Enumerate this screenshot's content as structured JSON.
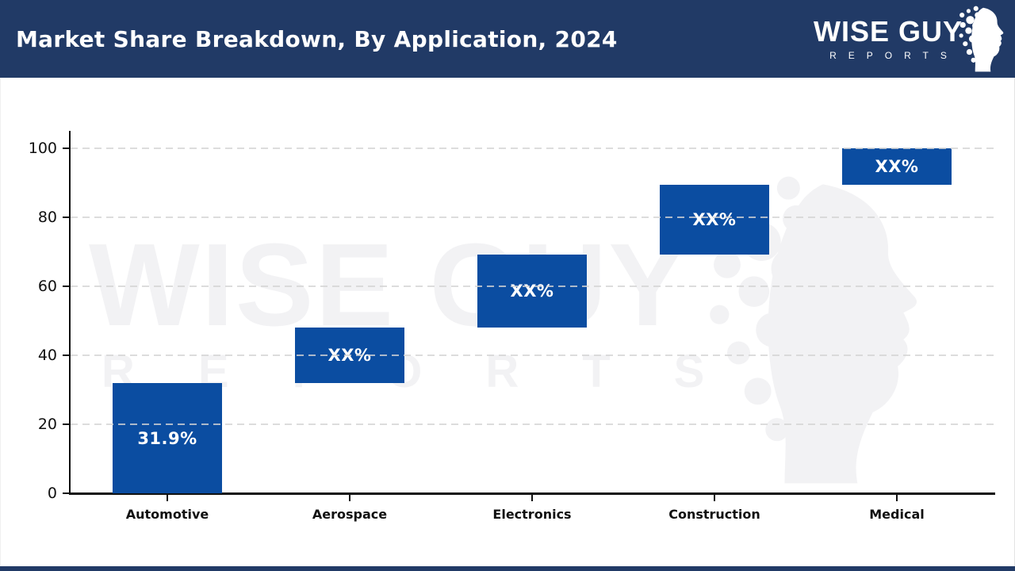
{
  "header": {
    "title": "Market Share Breakdown, By Application, 2024",
    "logo": {
      "line1": "WISE GUY",
      "line2": "REPORTS"
    }
  },
  "watermark": {
    "line1": "WISE GUY",
    "line2": "REPORTS"
  },
  "colors": {
    "header_bg": "#213a66",
    "bar": "#0b4da1",
    "grid": "#d4d4d4",
    "axis": "#111111",
    "bar_label": "#ffffff",
    "watermark": "#f2f2f4"
  },
  "chart_data": {
    "type": "bar",
    "subtype": "waterfall",
    "title": "Market Share Breakdown, By Application, 2024",
    "xlabel": "",
    "ylabel": "",
    "ylim": [
      0,
      100
    ],
    "yticks": [
      0,
      20,
      40,
      60,
      80,
      100
    ],
    "grid": "dashed horizontal, drawn over bars",
    "legend": "none",
    "categories": [
      "Automotive",
      "Aerospace",
      "Electronics",
      "Construction",
      "Medical"
    ],
    "segments": [
      {
        "category": "Automotive",
        "start": 0,
        "end": 31.9,
        "label": "31.9%"
      },
      {
        "category": "Aerospace",
        "start": 31.9,
        "end": 48.0,
        "label": "XX%"
      },
      {
        "category": "Electronics",
        "start": 48.0,
        "end": 69.2,
        "label": "XX%"
      },
      {
        "category": "Construction",
        "start": 69.2,
        "end": 89.4,
        "label": "XX%"
      },
      {
        "category": "Medical",
        "start": 89.4,
        "end": 100.0,
        "label": "XX%"
      }
    ]
  }
}
